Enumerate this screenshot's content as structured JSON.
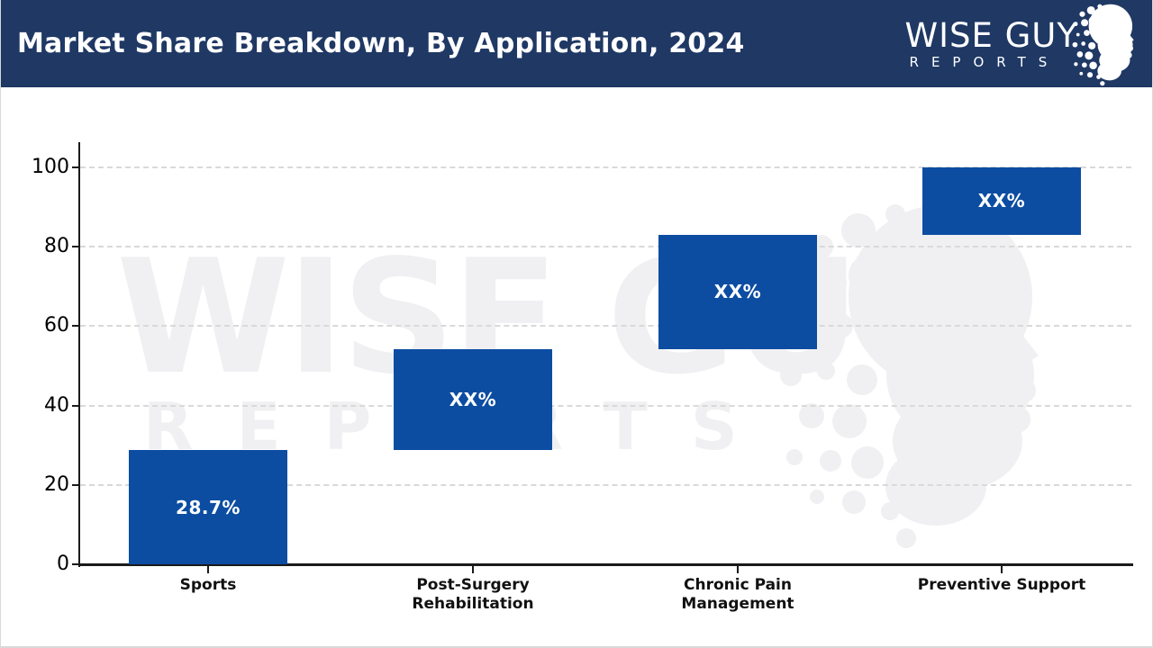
{
  "header": {
    "title": "Market Share Breakdown, By Application, 2024",
    "background": "#1F3864",
    "logo": {
      "wordmark": "WISE GUY",
      "subtext": "REPORTS"
    }
  },
  "watermark": {
    "line1": "WISE GUY",
    "line2": "REPORTS"
  },
  "colors": {
    "bar": "#0C4DA2",
    "grid": "#D9D9D9",
    "axis": "#1A1A1A",
    "header": "#1F3864",
    "watermark": "#F0F0F2",
    "bar_label": "#FFFFFF"
  },
  "chart_data": {
    "type": "bar",
    "subtype": "floating-waterfall",
    "title": "Market Share Breakdown, By Application, 2024",
    "categories": [
      "Sports",
      "Post-Surgery\nRehabilitation",
      "Chronic Pain\nManagement",
      "Preventive Support"
    ],
    "bars": [
      {
        "category": "Sports",
        "start": 0,
        "end": 28.7,
        "label": "28.7%"
      },
      {
        "category": "Post-Surgery Rehabilitation",
        "start": 28.7,
        "end": 54.3,
        "label": "XX%"
      },
      {
        "category": "Chronic Pain Management",
        "start": 54.3,
        "end": 83.0,
        "label": "XX%"
      },
      {
        "category": "Preventive Support",
        "start": 83.0,
        "end": 100,
        "label": "XX%"
      }
    ],
    "xlabel": "",
    "ylabel": "",
    "ylim": [
      0,
      100
    ],
    "yticks": [
      0,
      20,
      40,
      60,
      80,
      100
    ],
    "grid": "horizontal dashed",
    "legend": "none"
  }
}
